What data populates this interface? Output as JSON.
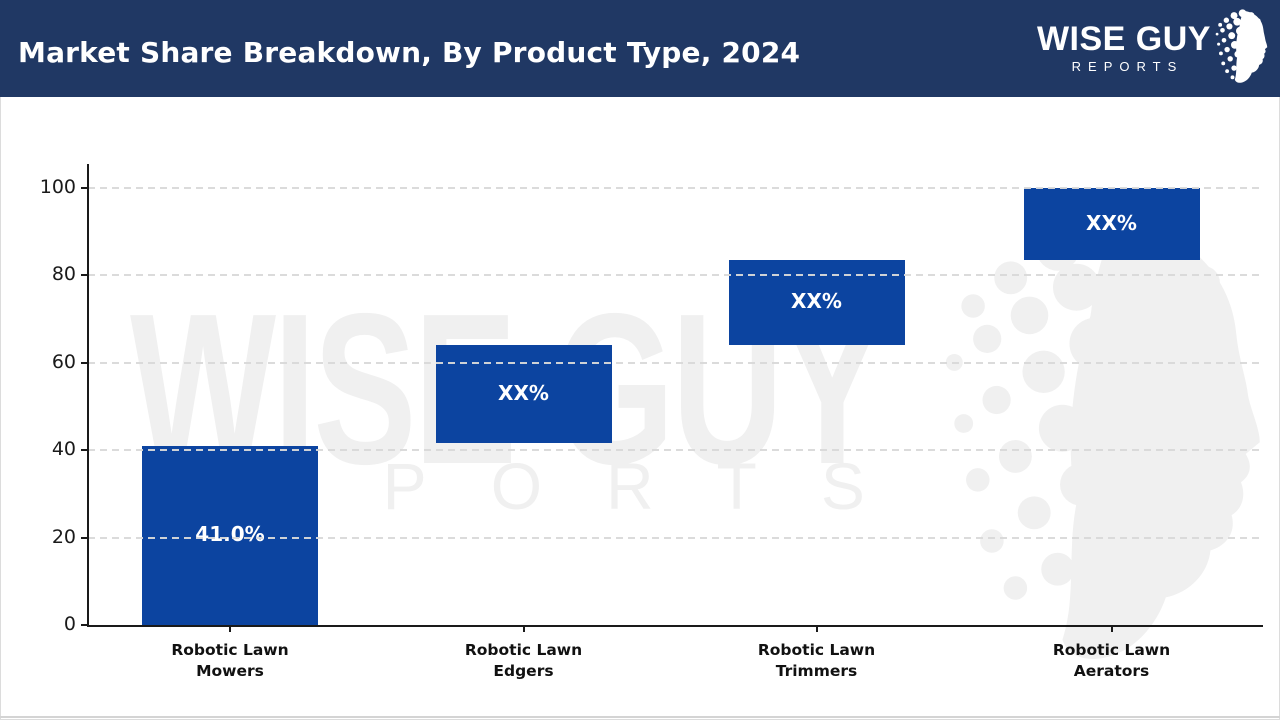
{
  "header": {
    "title": "Market Share Breakdown, By Product Type, 2024",
    "bg_color": "#203864",
    "logo": {
      "wordmark": "WISE GUY",
      "subtext": "REPORTS"
    }
  },
  "watermark": {
    "wordmark": "WISE GUY",
    "subtext": "REPORTS"
  },
  "chart_data": {
    "type": "bar",
    "subtype": "floating-waterfall",
    "title": "Market Share Breakdown, By Product Type, 2024",
    "categories": [
      "Robotic Lawn Mowers",
      "Robotic Lawn Edgers",
      "Robotic Lawn Trimmers",
      "Robotic Lawn Aerators"
    ],
    "category_lines": [
      [
        "Robotic Lawn",
        "Mowers"
      ],
      [
        "Robotic Lawn",
        "Edgers"
      ],
      [
        "Robotic Lawn",
        "Trimmers"
      ],
      [
        "Robotic Lawn",
        "Aerators"
      ]
    ],
    "segments": [
      {
        "category": "Robotic Lawn Mowers",
        "start": 0,
        "end": 41,
        "label": "41.0%"
      },
      {
        "category": "Robotic Lawn Edgers",
        "start": 41.5,
        "end": 64,
        "label": "XX%"
      },
      {
        "category": "Robotic Lawn Trimmers",
        "start": 64,
        "end": 83.5,
        "label": "XX%"
      },
      {
        "category": "Robotic Lawn Aerators",
        "start": 83.5,
        "end": 100,
        "label": "XX%"
      }
    ],
    "xlabel": "",
    "ylabel": "",
    "yticks": [
      0,
      20,
      40,
      60,
      80,
      100
    ],
    "ylim": [
      0,
      105
    ],
    "bar_color": "#0c44a0",
    "value_label_color": "#ffffff",
    "grid": {
      "horizontal": true,
      "style": "dashed",
      "color": "#d9d9d9",
      "above_bars": true
    },
    "axis_color": "#1a1a1a",
    "legend": "none"
  }
}
